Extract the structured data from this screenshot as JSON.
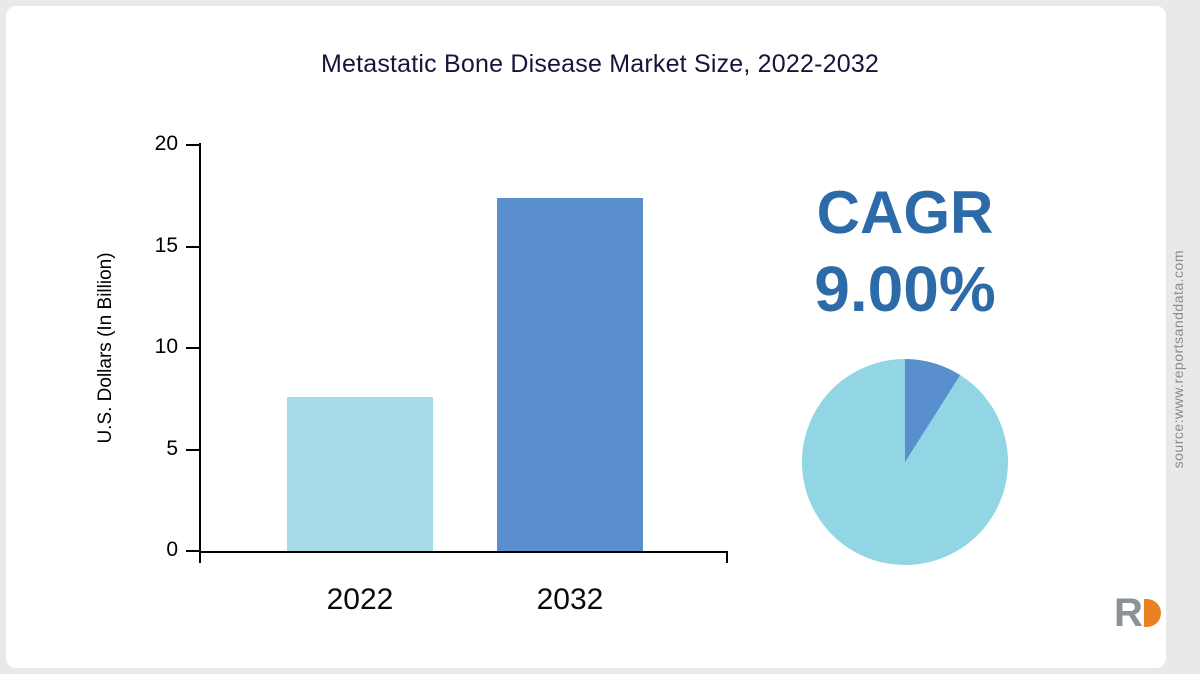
{
  "title": "Metastatic Bone Disease Market Size, 2022-2032",
  "source": "source:www.reportsanddata.com",
  "cagr": {
    "label": "CAGR",
    "value": "9.00%"
  },
  "logo": {
    "letter": "R"
  },
  "colors": {
    "background": "#e8eaea",
    "panel": "#ffffff",
    "axis": "#000000",
    "cagr_text": "#2d6ba8",
    "source_text": "#8b8b8b",
    "logo_gray": "#8b9298",
    "logo_orange": "#ea8125"
  },
  "chart_data": [
    {
      "type": "bar",
      "title": "Metastatic Bone Disease Market Size, 2022-2032",
      "categories": [
        "2022",
        "2032"
      ],
      "values": [
        7.6,
        17.4
      ],
      "colors": [
        "#a4dbe7",
        "#5a8fce"
      ],
      "xlabel": "",
      "ylabel": "U.S. Dollars (In Billion)",
      "ylim": [
        0,
        20
      ],
      "yticks": [
        0,
        5,
        10,
        15,
        20
      ],
      "grid": false,
      "legend": false
    },
    {
      "type": "pie",
      "annotation": "CAGR 9.00%",
      "slices": [
        {
          "label": "CAGR 9.00%",
          "value": 9,
          "color": "#5a8fce"
        },
        {
          "label": "remainder",
          "value": 91,
          "color": "#92d5e4"
        }
      ],
      "start_angle": "12 o'clock",
      "direction": "clockwise",
      "legend_position": "none"
    }
  ]
}
